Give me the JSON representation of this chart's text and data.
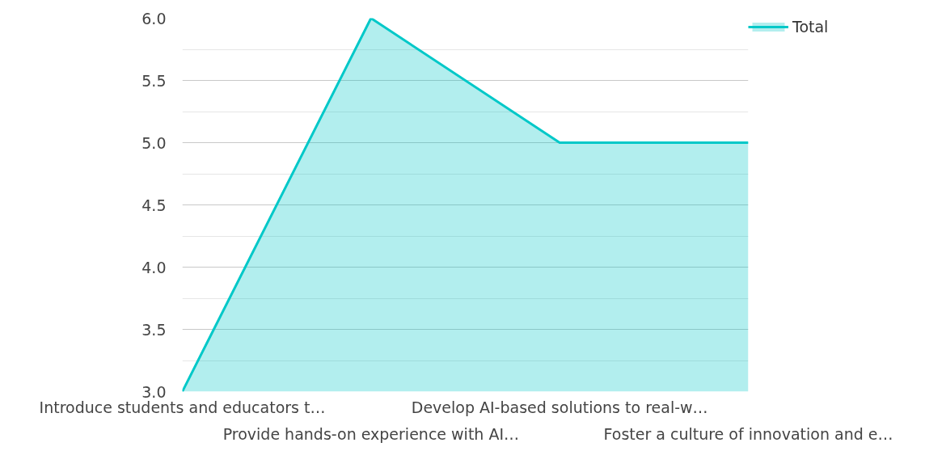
{
  "chart_data": {
    "type": "area",
    "categories": [
      "Introduce students and educators t…",
      "Provide hands-on experience with AI…",
      "Develop AI-based solutions to real-w…",
      "Foster a culture of innovation and e…"
    ],
    "series": [
      {
        "name": "Total",
        "color": "#00c8c8",
        "values": [
          3,
          6,
          5,
          5
        ]
      }
    ],
    "ylim": [
      3,
      6
    ],
    "yticks": [
      {
        "value": 3,
        "label": "3.0"
      },
      {
        "value": 3.5,
        "label": "3.5"
      },
      {
        "value": 4,
        "label": "4.0"
      },
      {
        "value": 4.5,
        "label": "4.5"
      },
      {
        "value": 5,
        "label": "5.0"
      },
      {
        "value": 5.5,
        "label": "5.5"
      },
      {
        "value": 6,
        "label": "6.0"
      }
    ],
    "grid": "y",
    "legend": "top right"
  }
}
